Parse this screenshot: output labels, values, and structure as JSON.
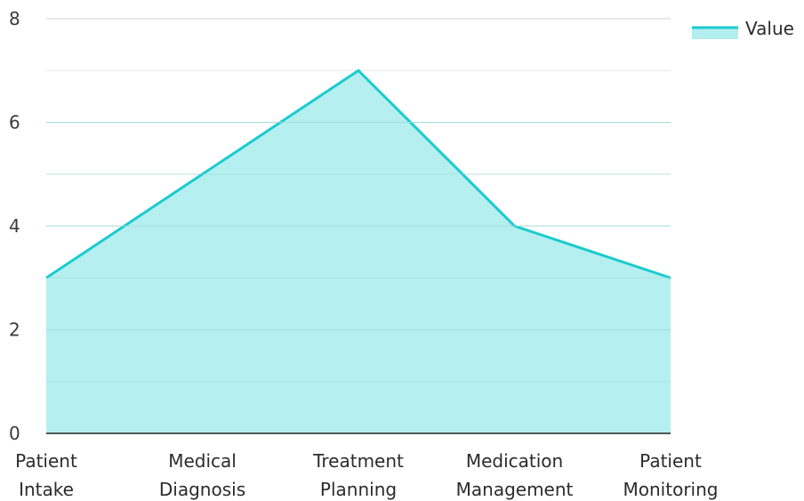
{
  "chart_data": {
    "type": "area",
    "categories": [
      [
        "Patient",
        "Intake"
      ],
      [
        "Medical",
        "Diagnosis"
      ],
      [
        "Treatment",
        "Planning"
      ],
      [
        "Medication",
        "Management"
      ],
      [
        "Patient",
        "Monitoring"
      ]
    ],
    "series": [
      {
        "name": "Value",
        "values": [
          3,
          5,
          7,
          4,
          3
        ]
      }
    ],
    "ylim": [
      0,
      8
    ],
    "yticks": [
      "0",
      "2",
      "4",
      "6",
      "8"
    ],
    "grid": true,
    "legend_position": "top-right",
    "colors": {
      "line": "#1bcbd0",
      "fill": "#b2eeee",
      "grid": "#d6d6d6",
      "axis": "#222222"
    }
  }
}
